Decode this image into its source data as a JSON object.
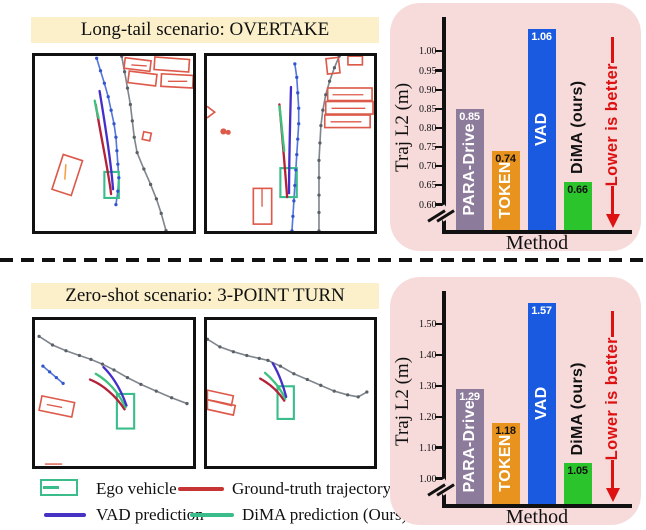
{
  "figure": {
    "top_section_title": "Long-tail scenario: OVERTAKE",
    "bottom_section_title": "Zero-shot scenario: 3-POINT TURN"
  },
  "legend": {
    "items": [
      {
        "label": "Ego vehicle",
        "swatch": "ego-box",
        "color": "#3bbd8b"
      },
      {
        "label": "Ground-truth trajectory",
        "swatch": "line",
        "color": "#c63434"
      },
      {
        "label": "VAD prediction",
        "swatch": "line",
        "color": "#4633c4"
      },
      {
        "label": "DiMA prediction (Ours)",
        "swatch": "line",
        "color": "#3bbd8b"
      }
    ]
  },
  "colors": {
    "panel_pink": "#f7dbdb",
    "title_cream": "#fbf0ca",
    "arrow_red": "#dd1111",
    "map_red": "#dd5a4a",
    "lane_blue": "#5577d9",
    "lane_blue_dot": "#3355cc",
    "lane_gray": "#80868e",
    "lane_gray_dot": "#5a6066",
    "ego_green": "#3bbd8b",
    "gt_red": "#b42139",
    "vad_blue": "#4430c8",
    "dima_green": "#3cc27e"
  },
  "chart_data": [
    {
      "type": "bar",
      "section": "Long-tail scenario: OVERTAKE",
      "categories": [
        "PARA-Drive",
        "TOKEN",
        "VAD",
        "DiMA (ours)"
      ],
      "values": [
        0.85,
        0.74,
        1.06,
        0.66
      ],
      "value_labels": [
        "0.85",
        "0.74",
        "1.06",
        "0.66"
      ],
      "bar_colors": [
        "#8d7b9c",
        "#e8931d",
        "#1a5ae0",
        "#2cc42c"
      ],
      "value_label_colors": [
        "#ffffff",
        "#111111",
        "#ffffff",
        "#111111"
      ],
      "cat_label_colors": [
        "#ffffff",
        "#ffffff",
        "#ffffff",
        "#111111"
      ],
      "cat_label_inside": [
        true,
        true,
        true,
        false
      ],
      "xlabel": "Method",
      "ylabel": "Traj L2 (m)",
      "yticks": [
        "0.60",
        "0.65",
        "0.70",
        "0.75",
        "0.80",
        "0.85",
        "0.90",
        "0.95",
        "1.00"
      ],
      "ylim": [
        0.6,
        1.0
      ],
      "axis_break": true,
      "grid": false,
      "annotation": "Lower is better"
    },
    {
      "type": "bar",
      "section": "Zero-shot scenario: 3-POINT TURN",
      "categories": [
        "PARA-Drive",
        "TOKEN",
        "VAD",
        "DiMA (ours)"
      ],
      "values": [
        1.29,
        1.18,
        1.57,
        1.05
      ],
      "value_labels": [
        "1.29",
        "1.18",
        "1.57",
        "1.05"
      ],
      "bar_colors": [
        "#8d7b9c",
        "#e8931d",
        "#1a5ae0",
        "#2cc42c"
      ],
      "value_label_colors": [
        "#ffffff",
        "#111111",
        "#ffffff",
        "#111111"
      ],
      "cat_label_colors": [
        "#ffffff",
        "#ffffff",
        "#ffffff",
        "#111111"
      ],
      "cat_label_inside": [
        true,
        true,
        true,
        false
      ],
      "xlabel": "Method",
      "ylabel": "Traj L2 (m)",
      "yticks": [
        "1.00",
        "1.10",
        "1.20",
        "1.30",
        "1.40",
        "1.50"
      ],
      "ylim": [
        1.0,
        1.5
      ],
      "axis_break": true,
      "grid": false,
      "annotation": "Lower is better"
    }
  ]
}
